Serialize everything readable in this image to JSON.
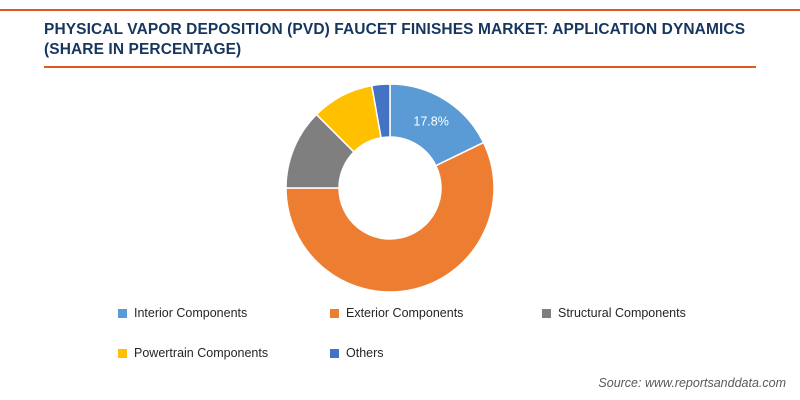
{
  "page": {
    "source": "Source: www.reportsanddata.com"
  },
  "theme": {
    "accent_orange": "#E2571B",
    "title_color": "#17365D"
  },
  "chart_data": {
    "type": "pie",
    "donut": true,
    "start_angle_deg": -90,
    "title": "PHYSICAL VAPOR DEPOSITION (PVD) FAUCET FINISHES MARKET: APPLICATION DYNAMICS (SHARE IN PERCENTAGE)",
    "categories": [
      "Interior Components",
      "Exterior Components",
      "Structural Components",
      "Powertrain Components",
      "Others"
    ],
    "values": [
      17.8,
      57.2,
      12.5,
      9.7,
      2.8
    ],
    "colors": [
      "#5B9BD5",
      "#ED7D31",
      "#7F7F7F",
      "#FFC000",
      "#4472C4"
    ],
    "data_labels": [
      "17.8%",
      "",
      "",
      "",
      ""
    ],
    "label_color": "#FFFFFF",
    "legend_position": "bottom"
  }
}
